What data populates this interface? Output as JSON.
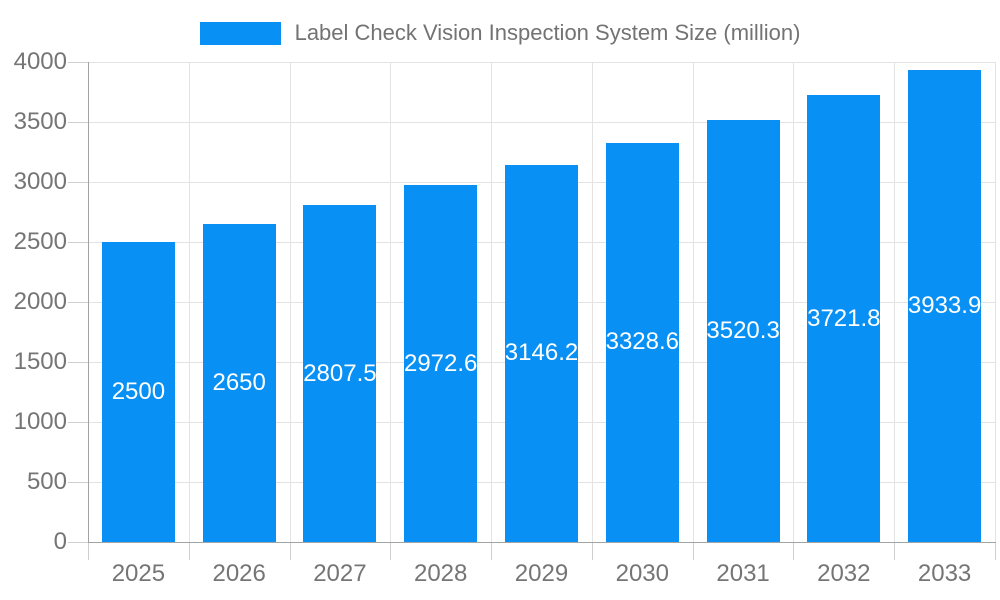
{
  "chart_data": {
    "type": "bar",
    "title": "Label Check Vision Inspection System Size (million)",
    "categories": [
      "2025",
      "2026",
      "2027",
      "2028",
      "2029",
      "2030",
      "2031",
      "2032",
      "2033"
    ],
    "values": [
      2500,
      2650,
      2807.5,
      2972.6,
      3146.2,
      3328.6,
      3520.3,
      3721.8,
      3933.9
    ],
    "value_labels": [
      "2500",
      "2650",
      "2807.5",
      "2972.6",
      "3146.2",
      "3328.6",
      "3520.3",
      "3721.8",
      "3933.9"
    ],
    "xlabel": "",
    "ylabel": "",
    "ylim": [
      0,
      4000
    ],
    "ytick_step": 500,
    "ytick_labels": [
      "0",
      "500",
      "1000",
      "1500",
      "2000",
      "2500",
      "3000",
      "3500",
      "4000"
    ],
    "grid": true,
    "legend_position": "top",
    "colors": {
      "bar": "#0890f5",
      "grid": "#e3e3e3",
      "tick": "#cfcfcf",
      "axis": "#a3a3a3",
      "axis_text": "#757575",
      "value_text": "#ffffff",
      "legend_text": "#737373",
      "background": "#ffffff"
    }
  }
}
